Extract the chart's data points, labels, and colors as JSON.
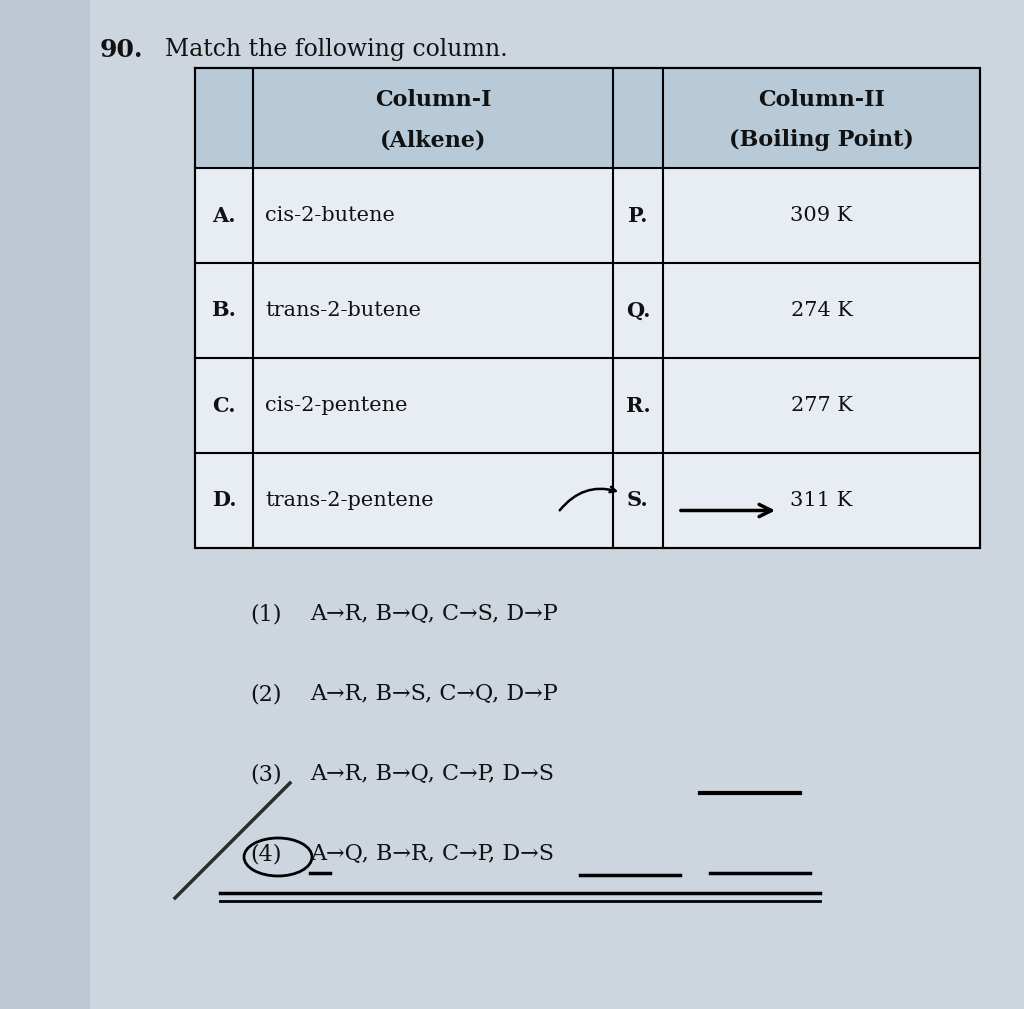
{
  "question_number": "90.",
  "question_text": "Match the following column.",
  "col1_header1": "Column-I",
  "col1_header2": "(Alkene)",
  "col2_header1": "Column-II",
  "col2_header2": "(Boiling Point)",
  "rows": [
    {
      "left_label": "A.",
      "left_text": "cis-2-butene",
      "right_label": "P.",
      "right_text": "309 K"
    },
    {
      "left_label": "B.",
      "left_text": "trans-2-butene",
      "right_label": "Q.",
      "right_text": "274 K"
    },
    {
      "left_label": "C.",
      "left_text": "cis-2-pentene",
      "right_label": "R.",
      "right_text": "277 K"
    },
    {
      "left_label": "D.",
      "left_text": "trans-2-pentene",
      "right_label": "S.",
      "right_text": "311 K"
    }
  ],
  "options": [
    {
      "num": "(1)",
      "text": "A→R, B→Q, C→S, D→P"
    },
    {
      "num": "(2)",
      "text": "A→R, B→S, C→Q, D→P"
    },
    {
      "num": "(3)",
      "text": "A→R, B→Q, C→P, D→S"
    },
    {
      "num": "(4)",
      "text": "A→Q, B→R, C→P, D→S"
    }
  ],
  "bg_color": "#cdd5de",
  "page_bg": "#d4dce6",
  "table_bg_white": "#e8edf3",
  "header_bg": "#b8cad8",
  "text_color": "#111111"
}
